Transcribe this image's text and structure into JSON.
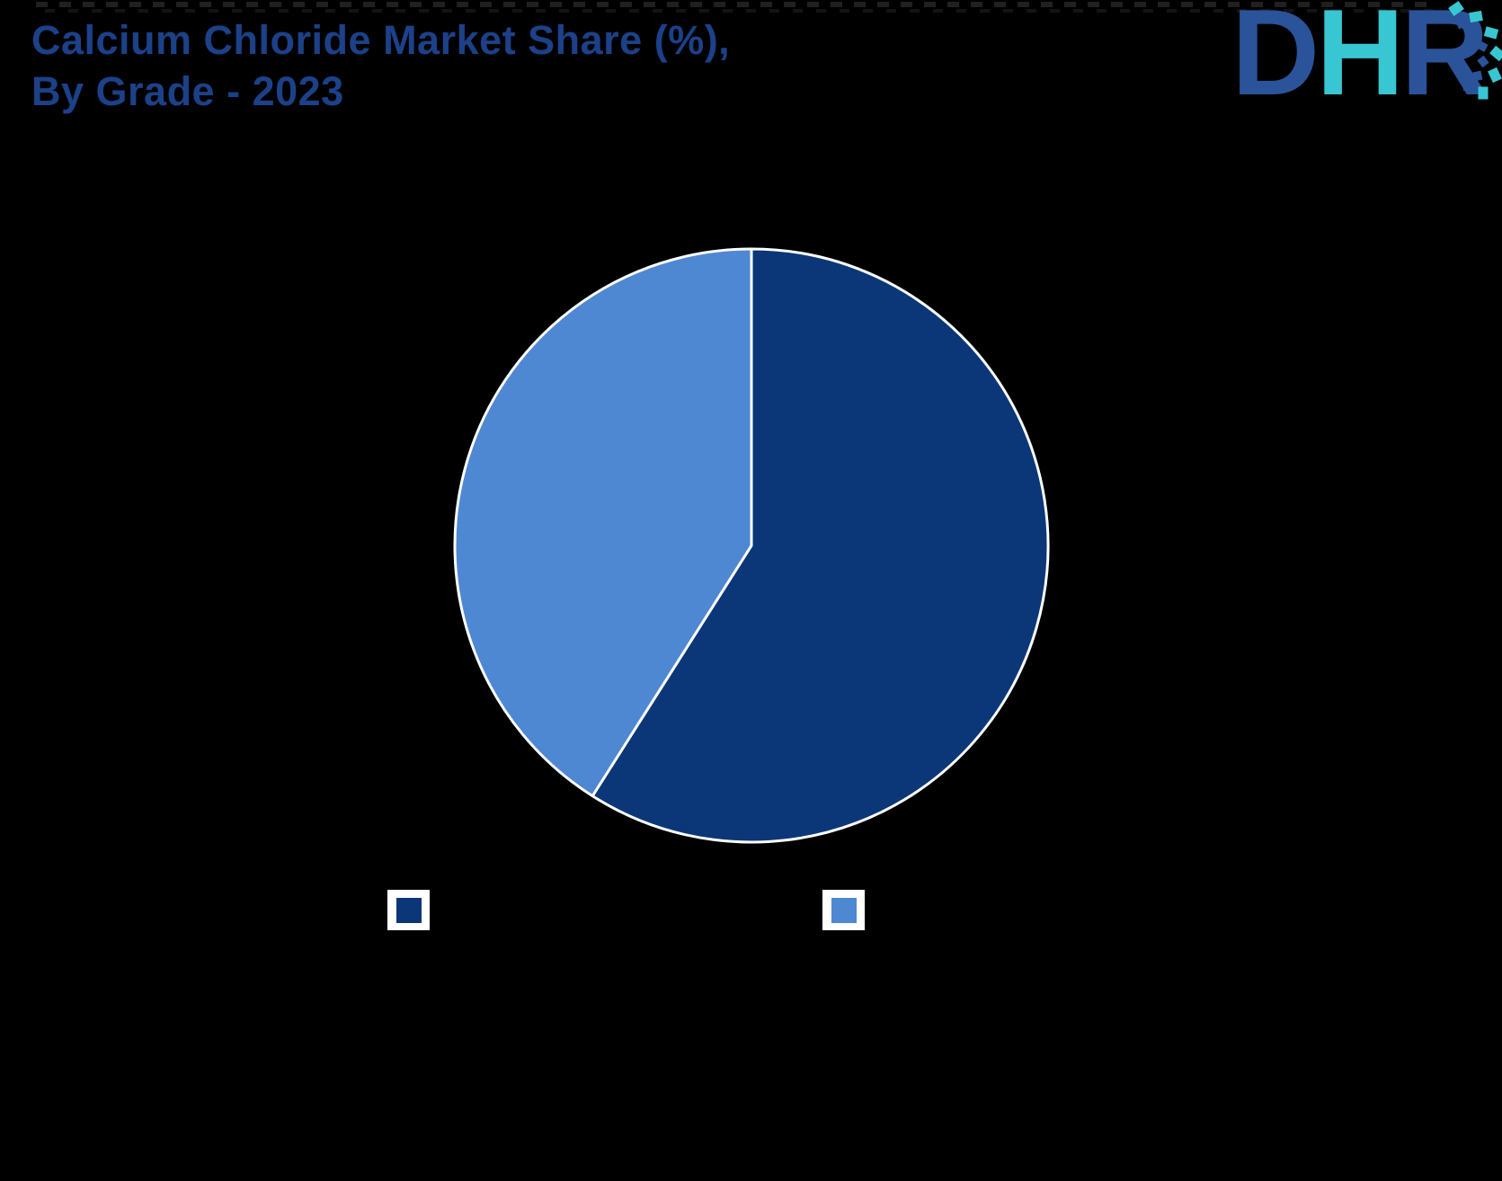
{
  "header": {
    "title_line1": "Calcium Chloride Market Share (%),",
    "title_line2": "By Grade - 2023",
    "title_color": "#1c4189"
  },
  "logo": {
    "letters": [
      "D",
      "H",
      "R"
    ],
    "brand_blue": "#2a5399",
    "brand_teal": "#38c6d2"
  },
  "chart_data": {
    "type": "pie",
    "title": "Calcium Chloride Market Share (%), By Grade - 2023",
    "legend_position": "bottom",
    "start_angle_deg": 0,
    "direction": "clockwise",
    "slice_border_color": "#ffffff",
    "background_color": "#000000",
    "slices": [
      {
        "label": "",
        "value": 59,
        "color": "#0b3778"
      },
      {
        "label": "",
        "value": 41,
        "color": "#4f88d2"
      }
    ]
  }
}
